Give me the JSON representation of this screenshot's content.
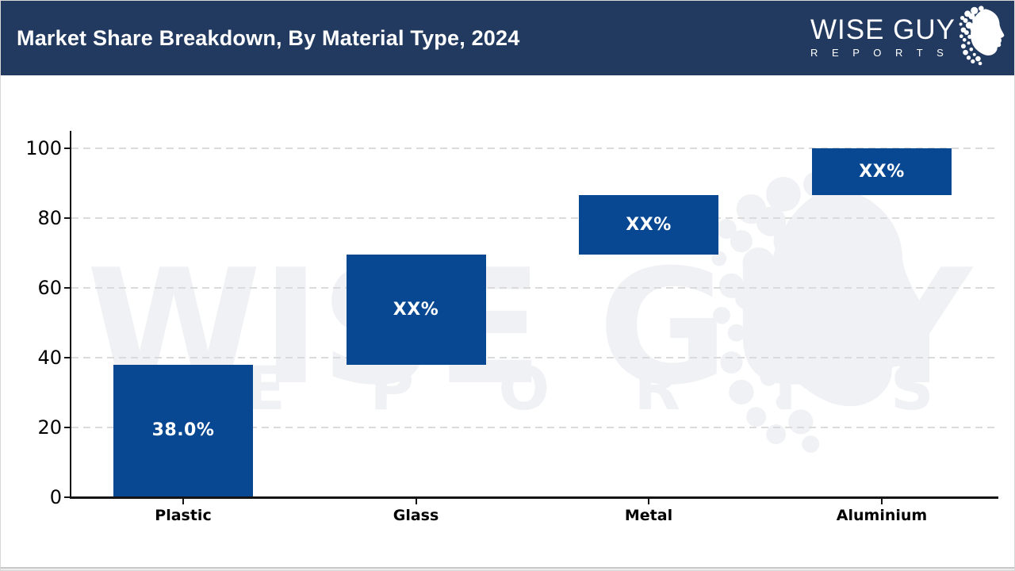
{
  "header": {
    "title": "Market Share Breakdown, By Material Type, 2024",
    "logo": {
      "line1": "WISE GUY",
      "line2": "R E P O R T S"
    },
    "background": "#223a5f"
  },
  "watermark": {
    "line1": "WISE GUY",
    "line2": "R E P O R T S"
  },
  "chart_data": {
    "type": "bar",
    "variant": "waterfall",
    "title": "Market Share Breakdown, By Material Type, 2024",
    "categories": [
      "Plastic",
      "Glass",
      "Metal",
      "Aluminium"
    ],
    "segments": [
      {
        "category": "Plastic",
        "start": 0,
        "end": 38.0,
        "value": 38.0,
        "label": "38.0%"
      },
      {
        "category": "Glass",
        "start": 38.0,
        "end": 69.6,
        "value": 31.6,
        "label": "XX%"
      },
      {
        "category": "Metal",
        "start": 69.6,
        "end": 86.5,
        "value": 16.9,
        "label": "XX%"
      },
      {
        "category": "Aluminium",
        "start": 86.5,
        "end": 100.0,
        "value": 13.5,
        "label": "XX%"
      }
    ],
    "yticks": [
      0,
      20,
      40,
      60,
      80,
      100
    ],
    "ylim": [
      0,
      105
    ],
    "xlabel": "",
    "ylabel": "",
    "grid": "horizontal-dashed",
    "legend": null,
    "bar_color": "#084892",
    "bar_label_color": "#ffffff",
    "grid_color": "#dbdbdb",
    "axis_color": "#141414"
  }
}
